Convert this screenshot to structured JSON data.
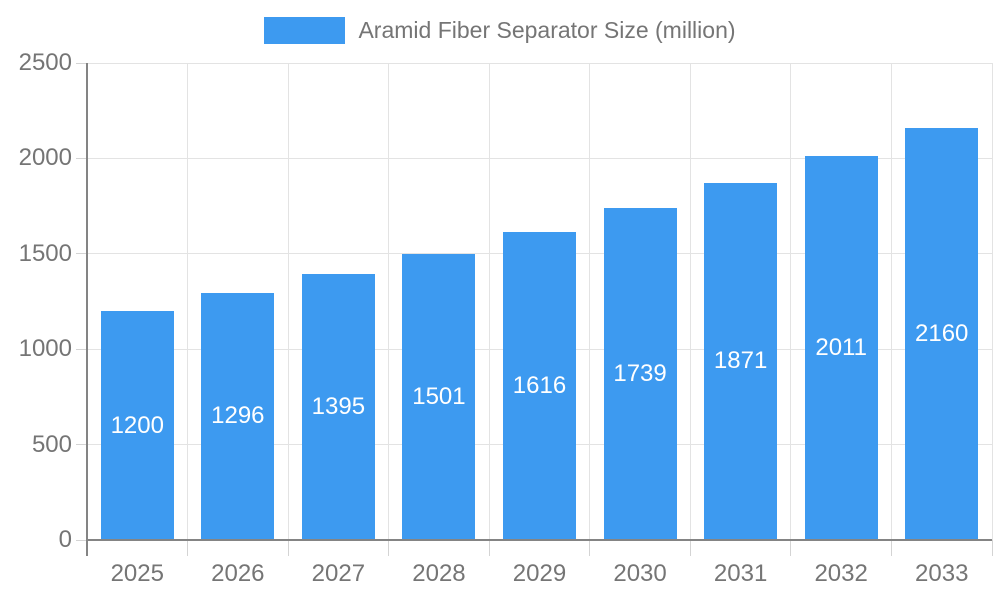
{
  "chart_data": {
    "type": "bar",
    "title": "Aramid Fiber Separator Size (million)",
    "series_name": "Aramid Fiber Separator Size (million)",
    "categories": [
      "2025",
      "2026",
      "2027",
      "2028",
      "2029",
      "2030",
      "2031",
      "2032",
      "2033"
    ],
    "values": [
      1200,
      1296,
      1395,
      1501,
      1616,
      1739,
      1871,
      2011,
      2160
    ],
    "xlabel": "",
    "ylabel": "",
    "ylim": [
      0,
      2500
    ],
    "yticks": [
      0,
      500,
      1000,
      1500,
      2000,
      2500
    ],
    "grid": true,
    "legend_position": "top",
    "value_labels": "inside-center",
    "colors": {
      "bar": "#3D9AF0",
      "bar_value_text": "#ffffff",
      "axis_text": "#757575",
      "legend_text": "#757575",
      "grid_line": "#e3e3e3",
      "tick_mark": "#d4d4d4",
      "axis_line": "#848484",
      "background": "#ffffff"
    }
  }
}
